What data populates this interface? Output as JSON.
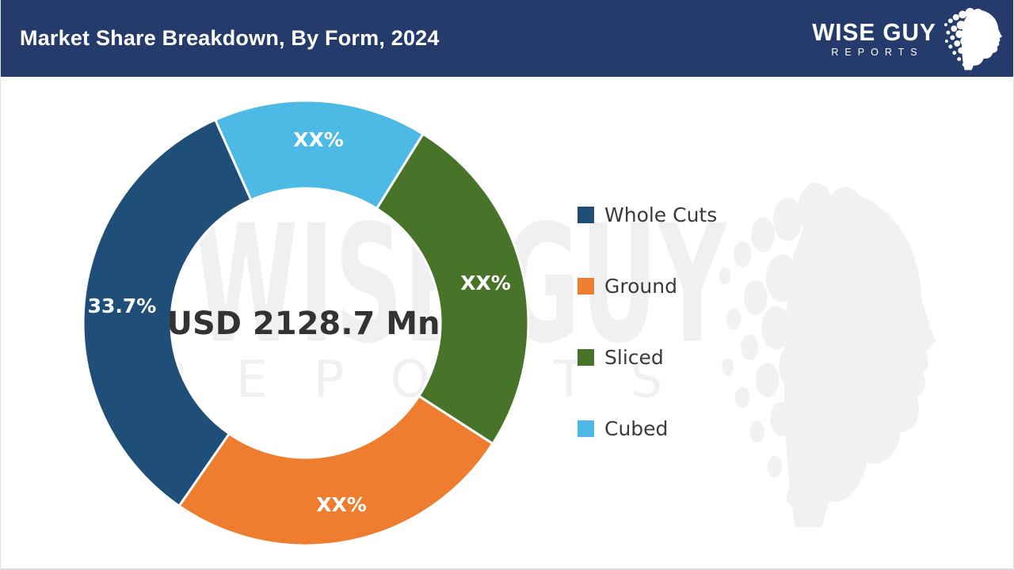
{
  "header": {
    "title": "Market Share Breakdown, By Form, 2024",
    "bg_color": "#253b6b",
    "logo": {
      "line1": "WISE GUY",
      "line2": "REPORTS"
    }
  },
  "watermark": {
    "line1": "WISE GUY",
    "line2": "REPORTS"
  },
  "chart_data": {
    "type": "pie",
    "subtype": "donut",
    "title": "Market Share Breakdown, By Form, 2024",
    "center_label": "USD 2128.7 Mn",
    "center_label_color": "#333333",
    "slice_label_color": "#ffffff",
    "start_angle_deg": 114,
    "direction": "clockwise",
    "outer_radius_px": 281,
    "inner_radius_ratio": 0.605,
    "legend_position": "right",
    "segments": [
      {
        "label": "Whole Cuts",
        "display_value": "33.7%",
        "value_pct": 33.7,
        "color": "#1f4e78"
      },
      {
        "label": "Ground",
        "display_value": "XX%",
        "value_pct": 25.5,
        "color": "#ee7d2f"
      },
      {
        "label": "Sliced",
        "display_value": "XX%",
        "value_pct": 25.3,
        "color": "#477428"
      },
      {
        "label": "Cubed",
        "display_value": "XX%",
        "value_pct": 15.5,
        "color": "#4dbae6"
      }
    ],
    "draw_order": [
      "Cubed",
      "Sliced",
      "Ground",
      "Whole Cuts"
    ]
  },
  "colors": {
    "watermark": "#f0f0f2",
    "watermark_face": "#f0f1f3",
    "separator": "#ffffff",
    "page_bg": "#ffffff"
  }
}
